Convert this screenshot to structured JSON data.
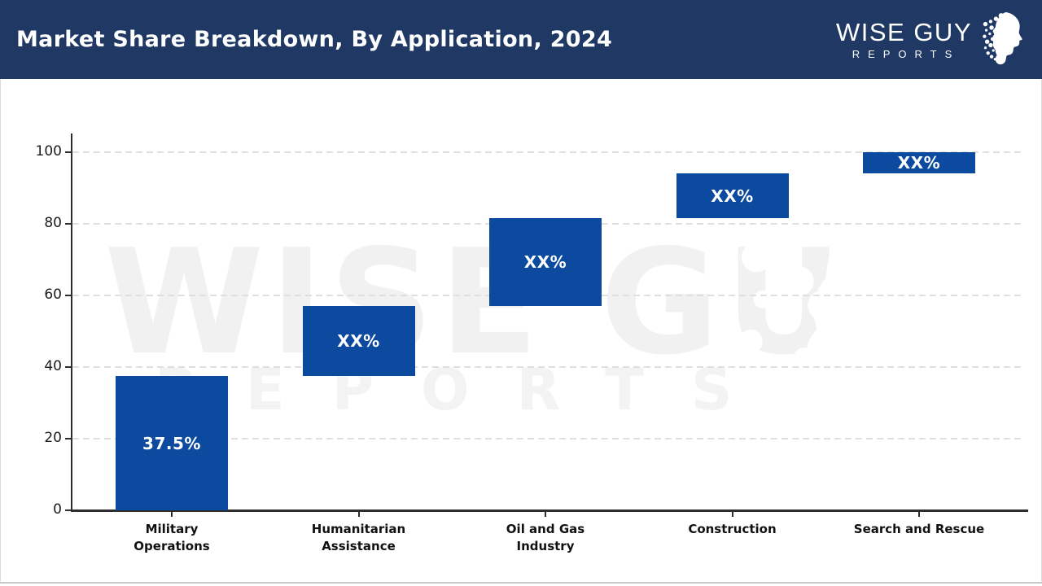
{
  "header": {
    "title": "Market Share Breakdown, By Application, 2024",
    "logo": {
      "line1": "WISE GUY",
      "line2": "REPORTS"
    }
  },
  "watermark": {
    "line1": "WISE GUY",
    "line2": "REPORTS"
  },
  "colors": {
    "header_bg": "#1f3864",
    "bar_blue": "#0b4a9f",
    "axis": "#2d2d2d",
    "gridline": "#dfdfdf",
    "watermark": "#f1f1f1"
  },
  "chart_data": {
    "type": "bar",
    "subtype": "waterfall",
    "title": "Market Share Breakdown, By Application, 2024",
    "categories": [
      "Military Operations",
      "Humanitarian Assistance",
      "Oil and Gas Industry",
      "Construction",
      "Search and Rescue"
    ],
    "category_lines": [
      [
        "Military",
        "Operations"
      ],
      [
        "Humanitarian",
        "Assistance"
      ],
      [
        "Oil and Gas",
        "Industry"
      ],
      [
        "Construction"
      ],
      [
        "Search and Rescue"
      ]
    ],
    "segments": [
      {
        "category": "Military Operations",
        "start": 0,
        "end": 37.5,
        "value": 37.5,
        "label": "37.5%"
      },
      {
        "category": "Humanitarian Assistance",
        "start": 37.5,
        "end": 57,
        "value": 19.5,
        "label": "XX%"
      },
      {
        "category": "Oil and Gas Industry",
        "start": 57,
        "end": 81.5,
        "value": 24.5,
        "label": "XX%"
      },
      {
        "category": "Construction",
        "start": 81.5,
        "end": 94,
        "value": 12.5,
        "label": "XX%"
      },
      {
        "category": "Search and Rescue",
        "start": 94,
        "end": 100,
        "value": 6,
        "label": "XX%"
      }
    ],
    "ylim": [
      0,
      100
    ],
    "yticks": [
      0,
      20,
      40,
      60,
      80,
      100
    ],
    "xlabel": "",
    "ylabel": "",
    "grid": "horizontal-dashed",
    "legend": "none",
    "bar_color": "#0b4a9f"
  }
}
